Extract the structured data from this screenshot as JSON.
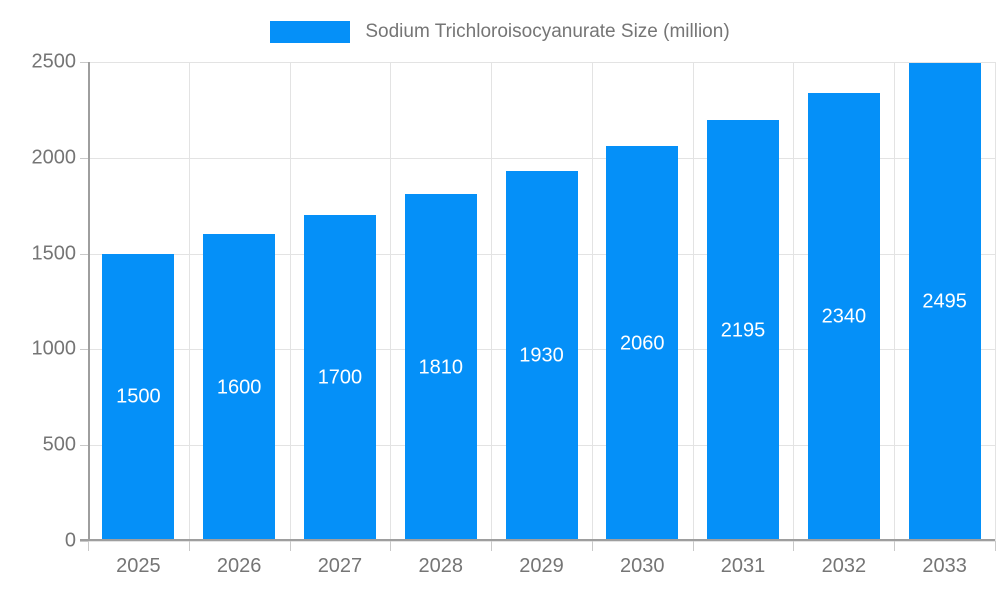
{
  "chart_data": {
    "type": "bar",
    "title": "Sodium Trichloroisocyanurate Size (million)",
    "categories": [
      "2025",
      "2026",
      "2027",
      "2028",
      "2029",
      "2030",
      "2031",
      "2032",
      "2033"
    ],
    "values": [
      1500,
      1600,
      1700,
      1810,
      1930,
      2060,
      2195,
      2340,
      2495
    ],
    "series": [
      {
        "name": "Sodium Trichloroisocyanurate Size (million)",
        "values": [
          1500,
          1600,
          1700,
          1810,
          1930,
          2060,
          2195,
          2340,
          2495
        ]
      }
    ],
    "xlabel": "",
    "ylabel": "",
    "ylim": [
      0,
      2500
    ],
    "yticks": [
      0,
      500,
      1000,
      1500,
      2000,
      2500
    ],
    "grid": true,
    "legend_position": "top-center",
    "value_labels": "inside-center-white"
  },
  "legend": {
    "label": "Sodium Trichloroisocyanurate Size (million)"
  },
  "colors": {
    "bar": "#0590f8",
    "grid": "#e3e3e3",
    "axis": "#9e9e9e",
    "tick_text": "#757575",
    "value_label_text": "#ffffff",
    "background": "#ffffff"
  }
}
